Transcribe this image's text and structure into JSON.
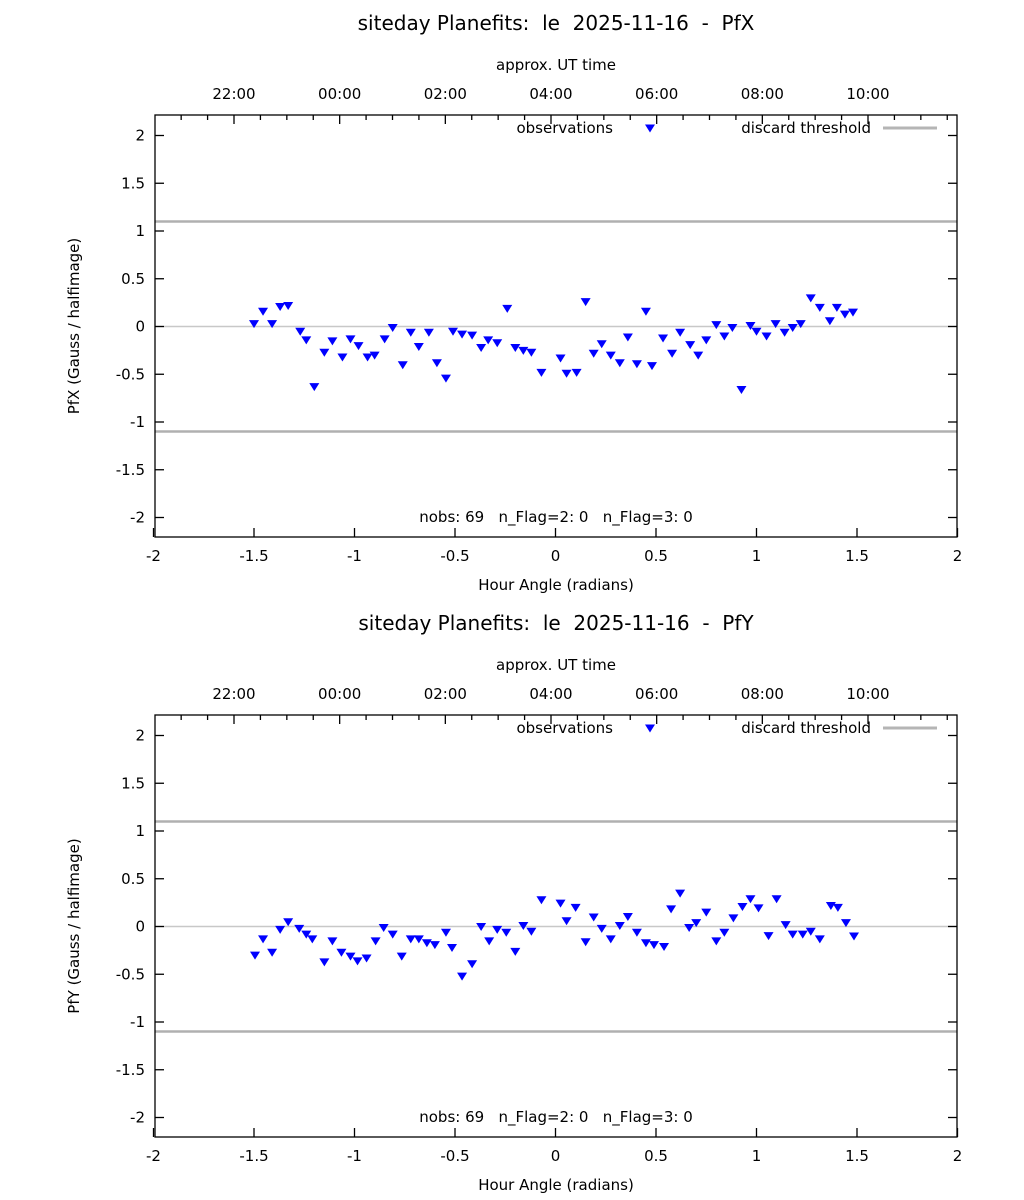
{
  "colors": {
    "background": "#ffffff",
    "marker_blue": "#0000ff",
    "threshold_gray": "#b0b0b0",
    "zero_line_gray": "#c8c8c8",
    "axis_black": "#000000"
  },
  "chart_data": [
    {
      "type": "scatter",
      "title": "siteday Planefits:  le  2025-11-16  -  PfX",
      "top_axis_label": "approx. UT time",
      "top_axis_ticks": [
        "22:00",
        "00:00",
        "02:00",
        "04:00",
        "06:00",
        "08:00",
        "10:00"
      ],
      "xlabel": "Hour Angle (radians)",
      "ylabel": "PfX (Gauss / halfimage)",
      "xlim": [
        -2,
        2
      ],
      "ylim": [
        -2.2,
        2.2
      ],
      "x_tick_labels": [
        "-2",
        "-1.5",
        "-1",
        "-0.5",
        "0",
        "0.5",
        "1",
        "1.5",
        "2"
      ],
      "x_tick_values": [
        -2,
        -1.5,
        -1,
        -0.5,
        0,
        0.5,
        1,
        1.5,
        2
      ],
      "y_tick_labels": [
        "2",
        "1.5",
        "1",
        "0.5",
        "0",
        "-0.5",
        "-1",
        "-1.5",
        "-2"
      ],
      "y_tick_values": [
        2,
        1.5,
        1,
        0.5,
        0,
        -0.5,
        -1,
        -1.5,
        -2
      ],
      "grid": false,
      "legend": [
        {
          "label": "observations",
          "marker": "triangle-down",
          "color": "#0000ff"
        },
        {
          "label": "discard threshold",
          "style": "line",
          "color": "#b5b5b5"
        }
      ],
      "threshold_values": [
        1.1,
        -1.1
      ],
      "zero_line": 0,
      "annotation": "nobs: 69   n_Flag=2: 0   n_Flag=3: 0",
      "nobs": 69,
      "n_flag_2": 0,
      "n_flag_3": 0,
      "series": [
        {
          "name": "observations",
          "points": [
            [
              -1.5,
              0.03
            ],
            [
              -1.455,
              0.16
            ],
            [
              -1.41,
              0.03
            ],
            [
              -1.37,
              0.21
            ],
            [
              -1.33,
              0.22
            ],
            [
              -1.27,
              -0.05
            ],
            [
              -1.24,
              -0.14
            ],
            [
              -1.2,
              -0.63
            ],
            [
              -1.15,
              -0.27
            ],
            [
              -1.11,
              -0.15
            ],
            [
              -1.06,
              -0.32
            ],
            [
              -1.02,
              -0.13
            ],
            [
              -0.98,
              -0.2
            ],
            [
              -0.935,
              -0.32
            ],
            [
              -0.9,
              -0.3
            ],
            [
              -0.85,
              -0.13
            ],
            [
              -0.81,
              -0.01
            ],
            [
              -0.76,
              -0.4
            ],
            [
              -0.72,
              -0.06
            ],
            [
              -0.68,
              -0.21
            ],
            [
              -0.63,
              -0.06
            ],
            [
              -0.59,
              -0.38
            ],
            [
              -0.545,
              -0.54
            ],
            [
              -0.51,
              -0.05
            ],
            [
              -0.465,
              -0.08
            ],
            [
              -0.415,
              -0.09
            ],
            [
              -0.37,
              -0.22
            ],
            [
              -0.335,
              -0.14
            ],
            [
              -0.29,
              -0.17
            ],
            [
              -0.24,
              0.19
            ],
            [
              -0.2,
              -0.22
            ],
            [
              -0.16,
              -0.25
            ],
            [
              -0.12,
              -0.27
            ],
            [
              -0.07,
              -0.48
            ],
            [
              0.025,
              -0.33
            ],
            [
              0.055,
              -0.49
            ],
            [
              0.105,
              -0.48
            ],
            [
              0.15,
              0.26
            ],
            [
              0.19,
              -0.28
            ],
            [
              0.23,
              -0.18
            ],
            [
              0.275,
              -0.3
            ],
            [
              0.32,
              -0.38
            ],
            [
              0.36,
              -0.11
            ],
            [
              0.405,
              -0.39
            ],
            [
              0.45,
              0.16
            ],
            [
              0.48,
              -0.41
            ],
            [
              0.535,
              -0.12
            ],
            [
              0.58,
              -0.28
            ],
            [
              0.62,
              -0.06
            ],
            [
              0.67,
              -0.19
            ],
            [
              0.71,
              -0.3
            ],
            [
              0.75,
              -0.14
            ],
            [
              0.8,
              0.02
            ],
            [
              0.84,
              -0.1
            ],
            [
              0.88,
              -0.01
            ],
            [
              0.925,
              -0.66
            ],
            [
              0.97,
              0.01
            ],
            [
              1.0,
              -0.05
            ],
            [
              1.05,
              -0.1
            ],
            [
              1.095,
              0.03
            ],
            [
              1.14,
              -0.06
            ],
            [
              1.18,
              -0.01
            ],
            [
              1.22,
              0.03
            ],
            [
              1.27,
              0.3
            ],
            [
              1.315,
              0.2
            ],
            [
              1.365,
              0.06
            ],
            [
              1.4,
              0.2
            ],
            [
              1.44,
              0.13
            ],
            [
              1.48,
              0.15
            ]
          ]
        }
      ]
    },
    {
      "type": "scatter",
      "title": "siteday Planefits:  le  2025-11-16  -  PfY",
      "top_axis_label": "approx. UT time",
      "top_axis_ticks": [
        "22:00",
        "00:00",
        "02:00",
        "04:00",
        "06:00",
        "08:00",
        "10:00"
      ],
      "xlabel": "Hour Angle (radians)",
      "ylabel": "PfY (Gauss / halfimage)",
      "xlim": [
        -2,
        2
      ],
      "ylim": [
        -2.2,
        2.2
      ],
      "x_tick_labels": [
        "-2",
        "-1.5",
        "-1",
        "-0.5",
        "0",
        "0.5",
        "1",
        "1.5",
        "2"
      ],
      "x_tick_values": [
        -2,
        -1.5,
        -1,
        -0.5,
        0,
        0.5,
        1,
        1.5,
        2
      ],
      "y_tick_labels": [
        "2",
        "1.5",
        "1",
        "0.5",
        "0",
        "-0.5",
        "-1",
        "-1.5",
        "-2"
      ],
      "y_tick_values": [
        2,
        1.5,
        1,
        0.5,
        0,
        -0.5,
        -1,
        -1.5,
        -2
      ],
      "grid": false,
      "legend": [
        {
          "label": "observations",
          "marker": "triangle-down",
          "color": "#0000ff"
        },
        {
          "label": "discard threshold",
          "style": "line",
          "color": "#b5b5b5"
        }
      ],
      "threshold_values": [
        1.1,
        -1.1
      ],
      "zero_line": 0,
      "annotation": "nobs: 69   n_Flag=2: 0   n_Flag=3: 0",
      "nobs": 69,
      "n_flag_2": 0,
      "n_flag_3": 0,
      "series": [
        {
          "name": "observations",
          "points": [
            [
              -1.495,
              -0.3
            ],
            [
              -1.455,
              -0.13
            ],
            [
              -1.41,
              -0.27
            ],
            [
              -1.37,
              -0.03
            ],
            [
              -1.33,
              0.05
            ],
            [
              -1.275,
              -0.02
            ],
            [
              -1.24,
              -0.08
            ],
            [
              -1.21,
              -0.13
            ],
            [
              -1.15,
              -0.37
            ],
            [
              -1.11,
              -0.15
            ],
            [
              -1.065,
              -0.27
            ],
            [
              -1.02,
              -0.31
            ],
            [
              -0.985,
              -0.36
            ],
            [
              -0.94,
              -0.33
            ],
            [
              -0.895,
              -0.15
            ],
            [
              -0.855,
              -0.01
            ],
            [
              -0.81,
              -0.08
            ],
            [
              -0.765,
              -0.31
            ],
            [
              -0.72,
              -0.13
            ],
            [
              -0.68,
              -0.13
            ],
            [
              -0.64,
              -0.17
            ],
            [
              -0.6,
              -0.19
            ],
            [
              -0.545,
              -0.06
            ],
            [
              -0.515,
              -0.22
            ],
            [
              -0.465,
              -0.52
            ],
            [
              -0.415,
              -0.39
            ],
            [
              -0.37,
              0.0
            ],
            [
              -0.33,
              -0.15
            ],
            [
              -0.29,
              -0.03
            ],
            [
              -0.245,
              -0.06
            ],
            [
              -0.2,
              -0.26
            ],
            [
              -0.16,
              0.01
            ],
            [
              -0.12,
              -0.05
            ],
            [
              -0.07,
              0.28
            ],
            [
              0.025,
              0.245
            ],
            [
              0.055,
              0.06
            ],
            [
              0.1,
              0.2
            ],
            [
              0.15,
              -0.16
            ],
            [
              0.19,
              0.1
            ],
            [
              0.23,
              -0.02
            ],
            [
              0.275,
              -0.13
            ],
            [
              0.32,
              0.01
            ],
            [
              0.36,
              0.105
            ],
            [
              0.405,
              -0.06
            ],
            [
              0.45,
              -0.17
            ],
            [
              0.49,
              -0.19
            ],
            [
              0.54,
              -0.21
            ],
            [
              0.575,
              0.185
            ],
            [
              0.62,
              0.35
            ],
            [
              0.665,
              -0.01
            ],
            [
              0.7,
              0.04
            ],
            [
              0.75,
              0.15
            ],
            [
              0.8,
              -0.15
            ],
            [
              0.84,
              -0.06
            ],
            [
              0.885,
              0.09
            ],
            [
              0.93,
              0.21
            ],
            [
              0.97,
              0.29
            ],
            [
              1.01,
              0.195
            ],
            [
              1.06,
              -0.095
            ],
            [
              1.1,
              0.29
            ],
            [
              1.145,
              0.02
            ],
            [
              1.18,
              -0.08
            ],
            [
              1.23,
              -0.08
            ],
            [
              1.27,
              -0.05
            ],
            [
              1.315,
              -0.13
            ],
            [
              1.37,
              0.22
            ],
            [
              1.405,
              0.2
            ],
            [
              1.445,
              0.04
            ],
            [
              1.485,
              -0.1
            ]
          ]
        }
      ]
    }
  ]
}
